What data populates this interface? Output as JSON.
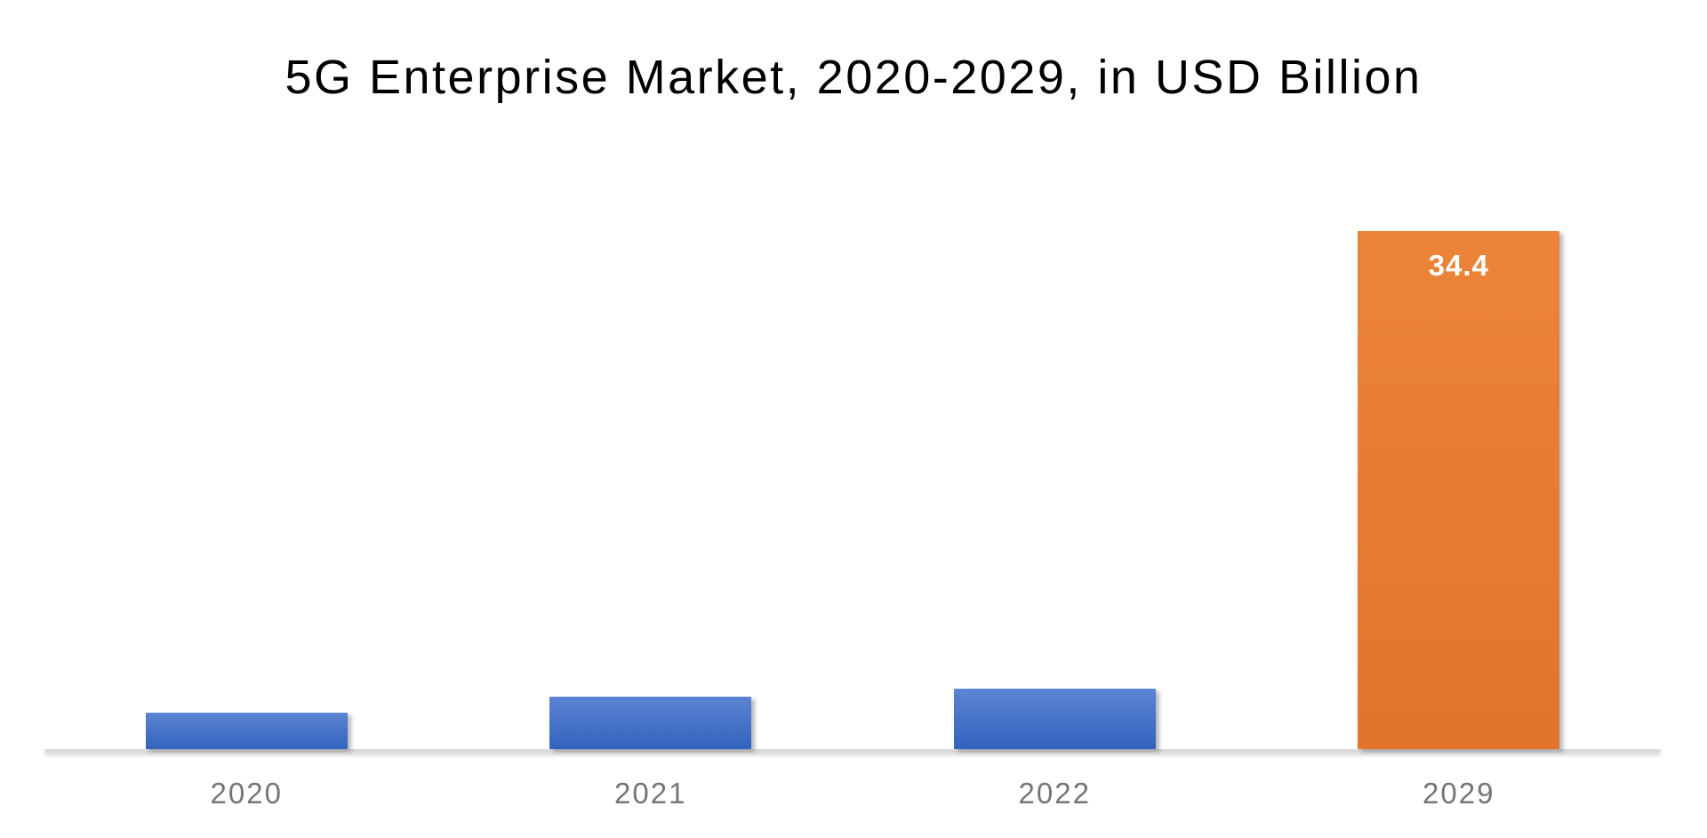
{
  "chart_data": {
    "type": "bar",
    "title": "5G Enterprise Market, 2020-2029, in USD Billion",
    "categories": [
      "2020",
      "2021",
      "2022",
      "2029"
    ],
    "values": [
      2.4,
      3.5,
      4.0,
      34.4
    ],
    "unit": "USD Billion",
    "ylim": [
      0,
      34.4
    ],
    "grid": false,
    "legend_position": "none",
    "y_axis_visible": false,
    "data_labels": [
      null,
      null,
      null,
      "34.4"
    ],
    "bar_color_keys": [
      "blue",
      "blue",
      "blue",
      "orange"
    ]
  },
  "colors": {
    "blue_top": "#5C84D2",
    "blue_bottom": "#3263BE",
    "orange_top": "#EB8439",
    "orange_bottom": "#E2742C",
    "axis_line": "#D9D9D9",
    "tick_label": "#757575",
    "title": "#000000",
    "data_label": "#FFFFFF",
    "background": "#FFFFFF"
  }
}
